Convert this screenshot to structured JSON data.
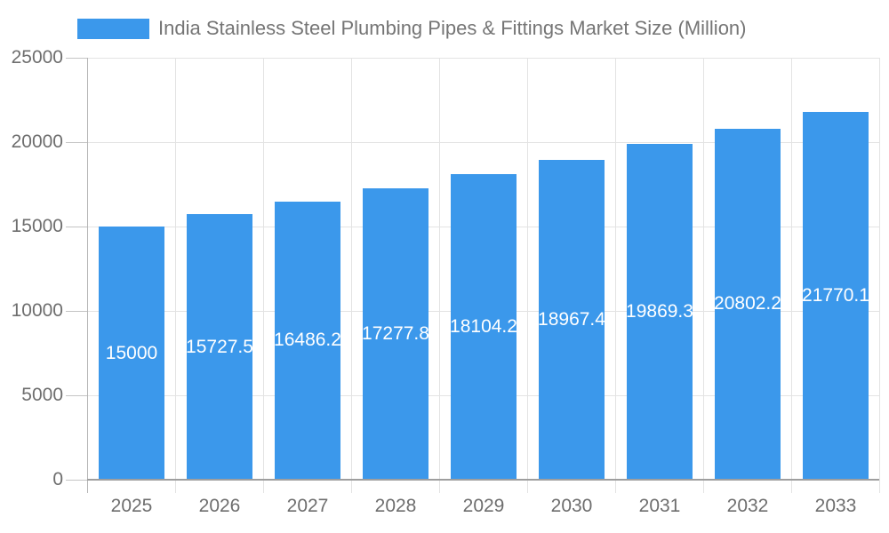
{
  "legend": {
    "label": "India Stainless Steel Plumbing Pipes & Fittings Market Size (Million)"
  },
  "chart_data": {
    "type": "bar",
    "title": "India Stainless Steel Plumbing Pipes & Fittings Market Size (Million)",
    "categories": [
      "2025",
      "2026",
      "2027",
      "2028",
      "2029",
      "2030",
      "2031",
      "2032",
      "2033"
    ],
    "values": [
      15000,
      15727.5,
      16486.2,
      17277.8,
      18104.2,
      18967.4,
      19869.3,
      20802.2,
      21770.1
    ],
    "value_labels": [
      "15000",
      "15727.5",
      "16486.2",
      "17277.8",
      "18104.2",
      "18967.4",
      "19869.3",
      "20802.2",
      "21770.1"
    ],
    "xlabel": "",
    "ylabel": "",
    "ylim": [
      0,
      25000
    ],
    "yticks": [
      0,
      5000,
      10000,
      15000,
      20000,
      25000
    ],
    "ytick_labels": [
      "0",
      "5000",
      "10000",
      "15000",
      "20000",
      "25000"
    ],
    "grid": true,
    "legend_position": "top-left",
    "bar_color": "#3B98EB",
    "value_label_color": "#ffffff",
    "axis_text_color": "#6e6e6e",
    "legend_text_color": "#757575",
    "gridline_color": "#e3e3e3",
    "baseline_color": "#9e9e9e"
  }
}
